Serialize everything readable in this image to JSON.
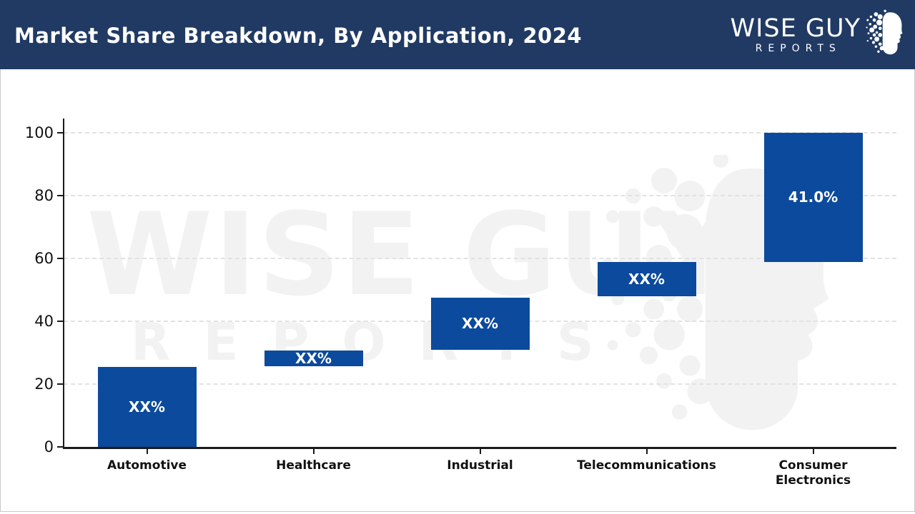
{
  "header": {
    "title": "Market Share Breakdown, By Application, 2024",
    "logo": {
      "name": "WISE GUY REPORTS",
      "line1": "WISE GUY",
      "line2": "REPORTS"
    }
  },
  "watermark": {
    "line1": "WISE GUY",
    "line2": "REPORTS"
  },
  "colors": {
    "header_bg": "#203a64",
    "bar_blue": "#0b4a9c",
    "bar_label_white": "#ffffff",
    "grid_gray": "#e2e2e2",
    "axis_black": "#1a1a1a",
    "watermark_gray": "#f2f2f2"
  },
  "chart_data": {
    "type": "bar",
    "subtype": "floating-waterfall",
    "title": "Market Share Breakdown, By Application, 2024",
    "xlabel": "",
    "ylabel": "",
    "legend": "none",
    "grid": "horizontal-dashed",
    "categories": [
      "Automotive",
      "Healthcare",
      "Industrial",
      "Telecommunications",
      "Consumer Electronics"
    ],
    "yticks": [
      0,
      20,
      40,
      60,
      80,
      100
    ],
    "ylim": [
      0,
      104.5
    ],
    "segments": [
      {
        "category": "Automotive",
        "start": 0,
        "end": 25.5,
        "label": "XX%"
      },
      {
        "category": "Healthcare",
        "start": 25.7,
        "end": 30.7,
        "label": "XX%"
      },
      {
        "category": "Industrial",
        "start": 30.9,
        "end": 47.6,
        "label": "XX%"
      },
      {
        "category": "Telecommunications",
        "start": 47.9,
        "end": 58.8,
        "label": "XX%"
      },
      {
        "category": "Consumer Electronics",
        "start": 58.9,
        "end": 100,
        "label": "41.0%"
      }
    ]
  }
}
